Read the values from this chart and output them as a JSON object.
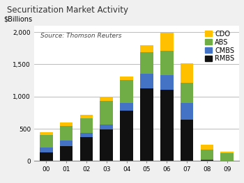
{
  "title": "Securitization Market Activity",
  "ylabel": "$Billions",
  "source_text": "Source: Thomson Reuters",
  "years": [
    "00",
    "01",
    "02",
    "03",
    "04",
    "05",
    "06",
    "07",
    "08",
    "09"
  ],
  "RMBS": [
    130,
    230,
    370,
    490,
    780,
    1130,
    1100,
    640,
    20,
    0
  ],
  "CMBS": [
    75,
    85,
    65,
    75,
    125,
    220,
    230,
    260,
    10,
    0
  ],
  "ABS": [
    200,
    230,
    230,
    370,
    350,
    340,
    380,
    310,
    150,
    125
  ],
  "CDO": [
    45,
    50,
    50,
    50,
    60,
    110,
    280,
    300,
    75,
    20
  ],
  "colors": {
    "RMBS": "#111111",
    "CMBS": "#4472c4",
    "ABS": "#70ad47",
    "CDO": "#ffc000"
  },
  "ylim": [
    0,
    2100
  ],
  "yticks": [
    0,
    500,
    1000,
    1500,
    2000
  ],
  "ytick_labels": [
    "0",
    "500",
    "1,000",
    "1,500",
    "2,000"
  ],
  "background_color": "#f0f0f0",
  "plot_bg_color": "#ffffff",
  "grid_color": "#b0b0b0",
  "title_fontsize": 8.5,
  "label_fontsize": 7,
  "tick_fontsize": 6.5,
  "legend_fontsize": 7
}
